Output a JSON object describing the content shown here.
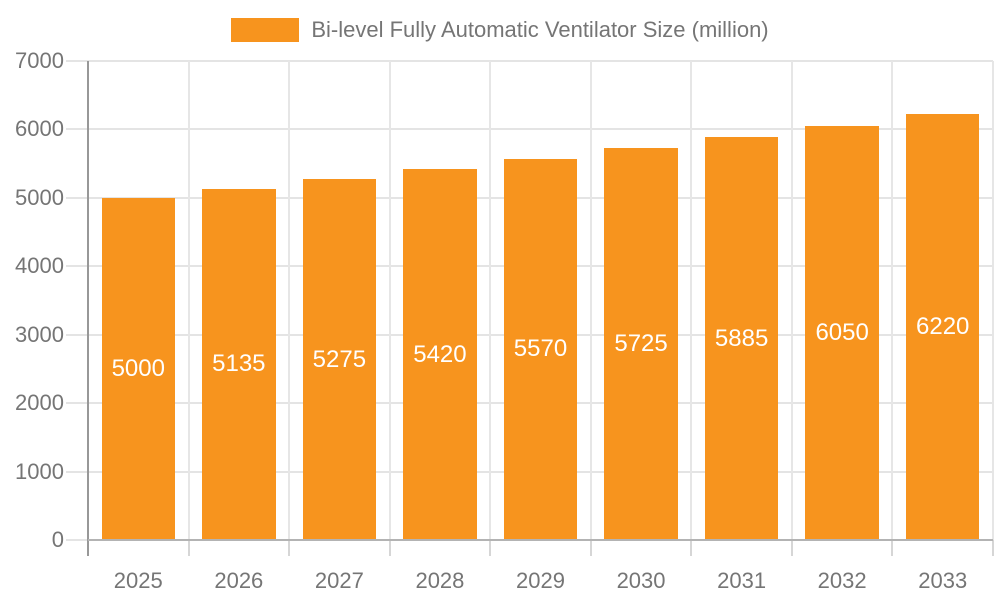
{
  "legend": {
    "label": "Bi-level Fully Automatic Ventilator Size (million)"
  },
  "colors": {
    "bar": "#F7941E",
    "bar_label": "#ffffff",
    "axis_text": "#757575",
    "grid": "#e4e4e4",
    "y_axis_line": "#989898",
    "x_axis_line": "#b3b3b3",
    "background": "#ffffff"
  },
  "chart_data": {
    "type": "bar",
    "title": "Bi-level Fully Automatic Ventilator Size (million)",
    "categories": [
      "2025",
      "2026",
      "2027",
      "2028",
      "2029",
      "2030",
      "2031",
      "2032",
      "2033"
    ],
    "values": [
      5000,
      5135,
      5275,
      5420,
      5570,
      5725,
      5885,
      6050,
      6220
    ],
    "xlabel": "",
    "ylabel": "",
    "ylim": [
      0,
      7000
    ],
    "ytick_step": 1000,
    "ytick_labels": [
      "0",
      "1000",
      "2000",
      "3000",
      "4000",
      "5000",
      "6000",
      "7000"
    ],
    "grid": true,
    "legend_position": "top-center",
    "bar_labels": "inside-center"
  }
}
